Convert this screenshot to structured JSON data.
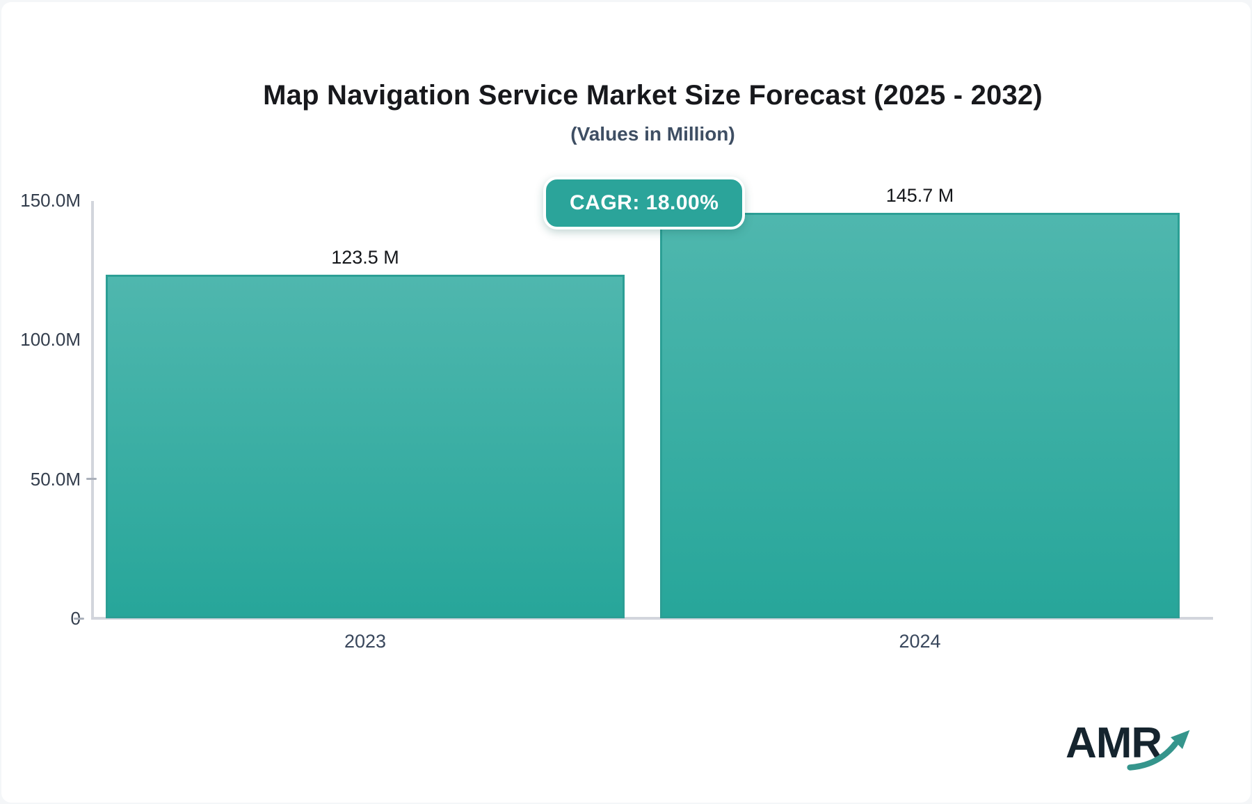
{
  "page": {
    "background": "#f4f6f8",
    "card_background": "#ffffff"
  },
  "header": {
    "title": "Map Navigation Service Market Size Forecast (2025 - 2032)",
    "subtitle": "(Values in Million)"
  },
  "badge": {
    "label": "CAGR: 18.00%",
    "background": "#2ba49a",
    "text_color": "#ffffff"
  },
  "chart_data": {
    "type": "bar",
    "title": "Map Navigation Service Market Size Forecast (2025 - 2032)",
    "subtitle": "(Values in Million)",
    "categories": [
      "2023",
      "2024"
    ],
    "values": [
      123.5,
      145.7
    ],
    "bar_labels": [
      "123.5 M",
      "145.7 M"
    ],
    "unit": "Million",
    "cagr": "18.00%",
    "xlabel": "",
    "ylabel": "",
    "ylim": [
      0,
      150
    ],
    "yticks": [
      "150.0M",
      "100.0M",
      "50.0M",
      "0"
    ],
    "grid": false,
    "legend": false,
    "bar_color_top": "#4fb7ae",
    "bar_color_bottom": "#27a69a",
    "bar_border_color": "#2c9f95",
    "axis_color": "#d2d5dc"
  },
  "logo": {
    "text": "AMR",
    "text_color": "#15242e",
    "arrow_color": "#35958c"
  }
}
